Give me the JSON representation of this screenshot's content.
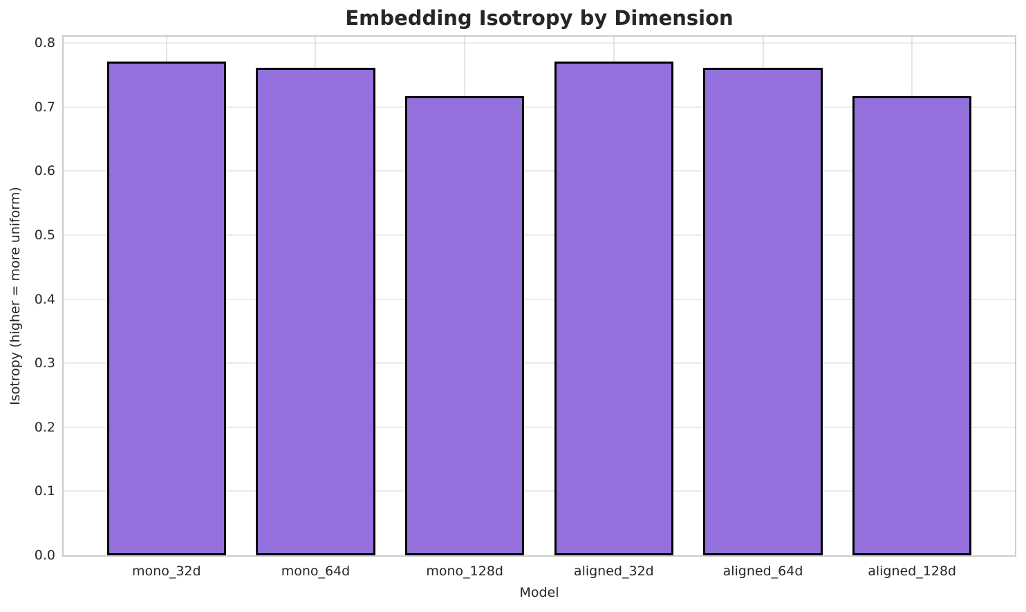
{
  "chart_data": {
    "type": "bar",
    "title": "Embedding Isotropy by Dimension",
    "xlabel": "Model",
    "ylabel": "Isotropy (higher = more uniform)",
    "categories": [
      "mono_32d",
      "mono_64d",
      "mono_128d",
      "aligned_32d",
      "aligned_64d",
      "aligned_128d"
    ],
    "values": [
      0.771,
      0.761,
      0.717,
      0.771,
      0.761,
      0.717
    ],
    "ylim": [
      0,
      0.81
    ],
    "xlim": [
      -0.69,
      5.69
    ],
    "yticks": [
      0.0,
      0.1,
      0.2,
      0.3,
      0.4,
      0.5,
      0.6,
      0.7,
      0.8
    ],
    "ytick_labels": [
      "0.0",
      "0.1",
      "0.2",
      "0.3",
      "0.4",
      "0.5",
      "0.6",
      "0.7",
      "0.8"
    ],
    "bar_width": 0.8,
    "grid": true,
    "legend": false,
    "colors": {
      "bar_fill": "#9370DB",
      "bar_edge": "#000000",
      "grid_line_h": "#ebebeb",
      "grid_line_v": "#e4e4e4",
      "spine": "#cccccc",
      "text": "#262626",
      "background": "#ffffff"
    }
  }
}
